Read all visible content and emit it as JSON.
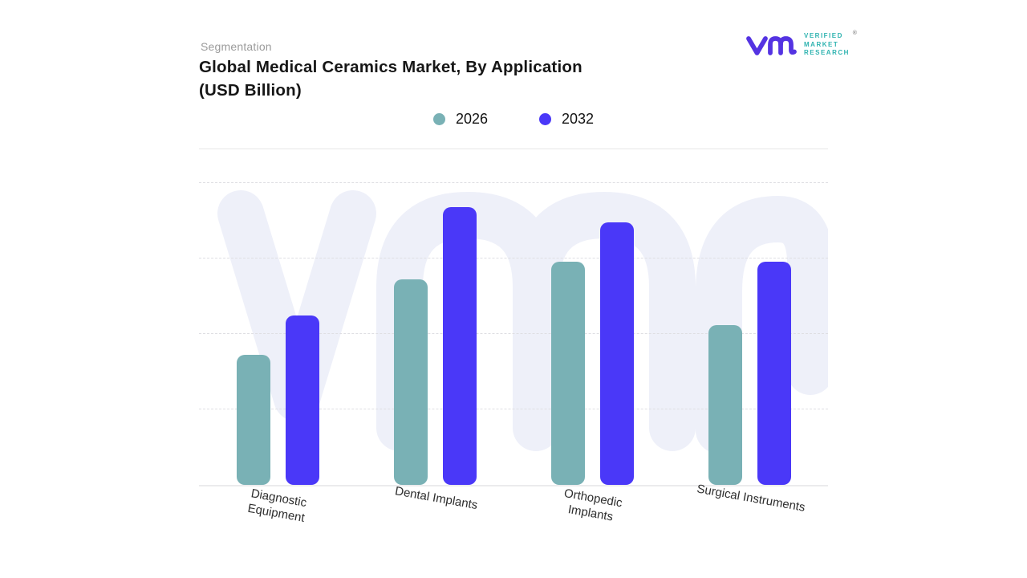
{
  "header": {
    "eyebrow": "Segmentation",
    "title": "Global Medical Ceramics Market, By Application\n(USD Billion)"
  },
  "logo": {
    "brand_lines": [
      "VERIFIED",
      "MARKET",
      "RESEARCH"
    ],
    "registered_mark": "®",
    "monogram_color": "#5433e2",
    "text_color": "#2fb3b0"
  },
  "legend": {
    "items": [
      {
        "label": "2026",
        "color": "#79B1B5"
      },
      {
        "label": "2032",
        "color": "#4A38F8"
      }
    ]
  },
  "watermark": {
    "text": "vmr",
    "color": "#EEF0F9"
  },
  "chart_data": {
    "type": "bar",
    "title": "Global Medical Ceramics Market, By Application (USD Billion)",
    "unit": "USD Billion",
    "categories": [
      "Diagnostic Equipment",
      "Dental Implants",
      "Orthopedic Implants",
      "Surgical Instruments"
    ],
    "category_label_lines": [
      [
        "Diagnostic",
        "Equipment"
      ],
      [
        "Dental Implants"
      ],
      [
        "Orthopedic",
        "Implants"
      ],
      [
        "Surgical Instruments"
      ]
    ],
    "series": [
      {
        "name": "2026",
        "color": "#79B1B5",
        "values": [
          43,
          68,
          74,
          53
        ]
      },
      {
        "name": "2032",
        "color": "#4A38F8",
        "values": [
          56,
          92,
          87,
          74
        ]
      }
    ],
    "value_axis": {
      "min": 0,
      "max": 100,
      "gridlines": [
        25,
        50,
        75,
        100
      ]
    },
    "grid": "dashed-horizontal",
    "legend_position": "top-center",
    "values_note": "relative heights; numeric axis not shown in source"
  }
}
